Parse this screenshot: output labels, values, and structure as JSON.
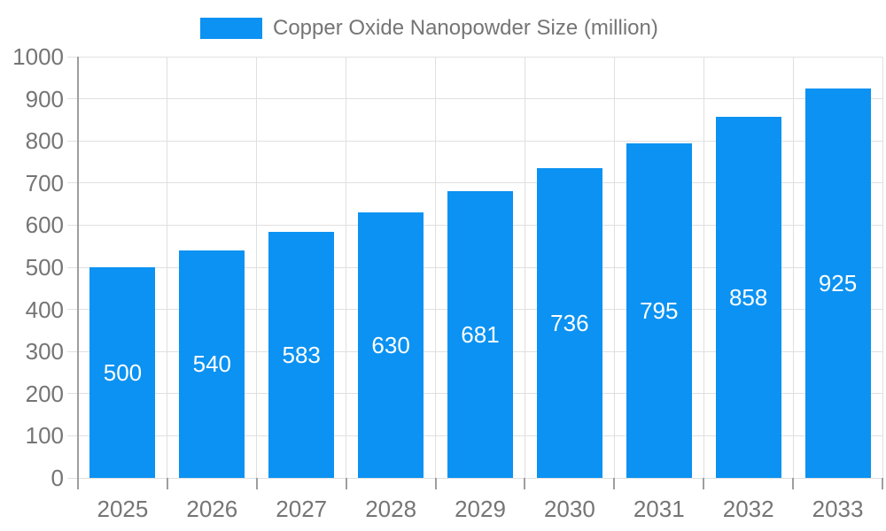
{
  "chart_data": {
    "type": "bar",
    "title": "Copper Oxide Nanopowder Size (million)",
    "legend_position": "top",
    "categories": [
      "2025",
      "2026",
      "2027",
      "2028",
      "2029",
      "2030",
      "2031",
      "2032",
      "2033"
    ],
    "series": [
      {
        "name": "Copper Oxide Nanopowder Size (million)",
        "values": [
          500,
          540,
          583,
          630,
          681,
          736,
          795,
          858,
          925
        ]
      }
    ],
    "value_labels": [
      "500",
      "540",
      "583",
      "630",
      "681",
      "736",
      "795",
      "858",
      "925"
    ],
    "yticks": [
      0,
      100,
      200,
      300,
      400,
      500,
      600,
      700,
      800,
      900,
      1000
    ],
    "ylim": [
      0,
      1000
    ],
    "xlabel": "",
    "ylabel": "",
    "grid": true,
    "colors": {
      "bar": "#0b92f2",
      "bar_value_label": "#ffffff",
      "axis_text": "#757575",
      "grid_line": "#e0e0e0",
      "axis_line": "#9e9e9e",
      "background": "#ffffff"
    }
  }
}
